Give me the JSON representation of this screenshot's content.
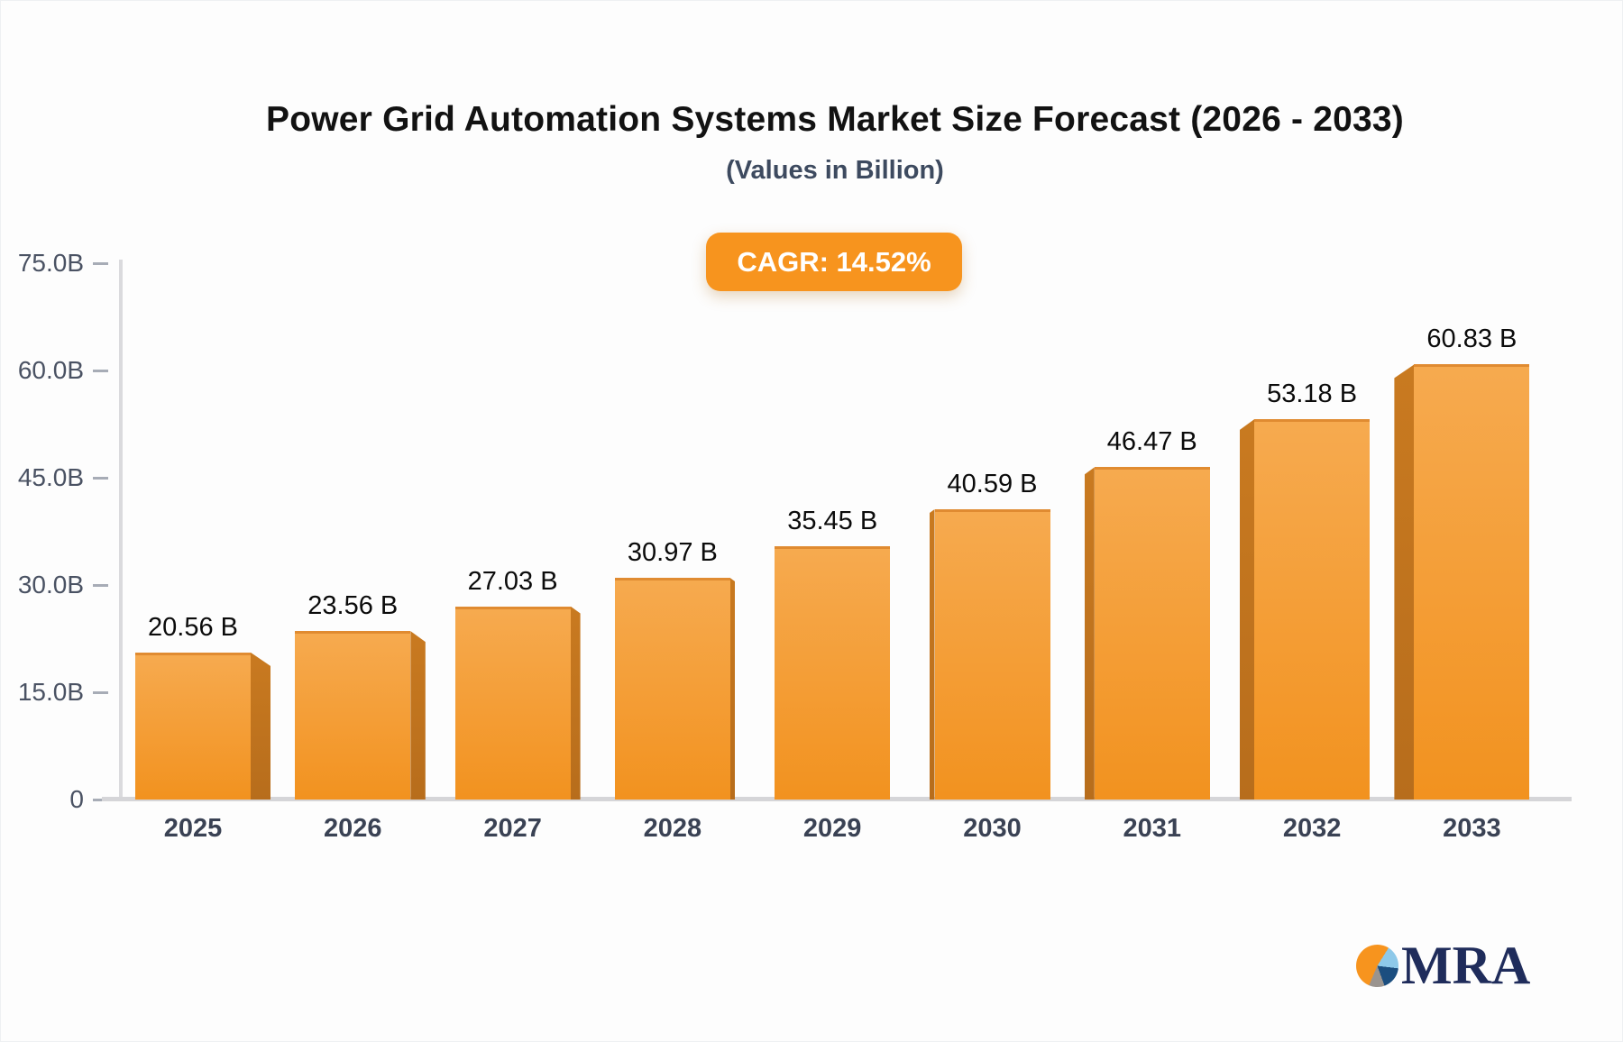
{
  "header": {
    "title": "Power Grid Automation Systems Market Size Forecast (2026 - 2033)",
    "subtitle": "(Values in Billion)"
  },
  "cagr_badge": {
    "label": "CAGR: 14.52%",
    "background_color": "#F7941E",
    "text_color": "#FFFFFF"
  },
  "chart_data": {
    "type": "bar",
    "title": "Power Grid Automation Systems Market Size Forecast (2026 - 2033)",
    "subtitle": "(Values in Billion)",
    "categories": [
      "2025",
      "2026",
      "2027",
      "2028",
      "2029",
      "2030",
      "2031",
      "2032",
      "2033"
    ],
    "values": [
      20.56,
      23.56,
      27.03,
      30.97,
      35.45,
      40.59,
      46.47,
      53.18,
      60.83
    ],
    "value_labels": [
      "20.56 B",
      "23.56 B",
      "27.03 B",
      "30.97 B",
      "35.45 B",
      "40.59 B",
      "46.47 B",
      "53.18 B",
      "60.83 B"
    ],
    "unit": "Billion USD",
    "xlabel": "",
    "ylabel": "",
    "ylim": [
      0,
      75
    ],
    "yticks": [
      0,
      15,
      30,
      45,
      60,
      75
    ],
    "ytick_labels": [
      "0",
      "15.0B",
      "30.0B",
      "45.0B",
      "60.0B",
      "75.0B"
    ],
    "grid": false,
    "legend": "none",
    "bar_gradient_top": "#F6AA4F",
    "bar_gradient_bottom": "#F2921F",
    "bar_top_edge_color": "#E08B31",
    "bar_side_gradient_top": "#C97A20",
    "bar_side_gradient_bottom": "#B76D1C",
    "axis_color": "#D5D5D8",
    "ytick_label_color": "#4A5263",
    "xtick_label_color": "#3A4254",
    "value_label_color": "#0B0B0B"
  },
  "logo": {
    "text": "MRA",
    "text_color": "#1F2C5B",
    "pie_orange": "#F7941E",
    "pie_light_blue": "#8EC9E9",
    "pie_navy": "#1B4E7F",
    "pie_gray": "#9A948F"
  }
}
